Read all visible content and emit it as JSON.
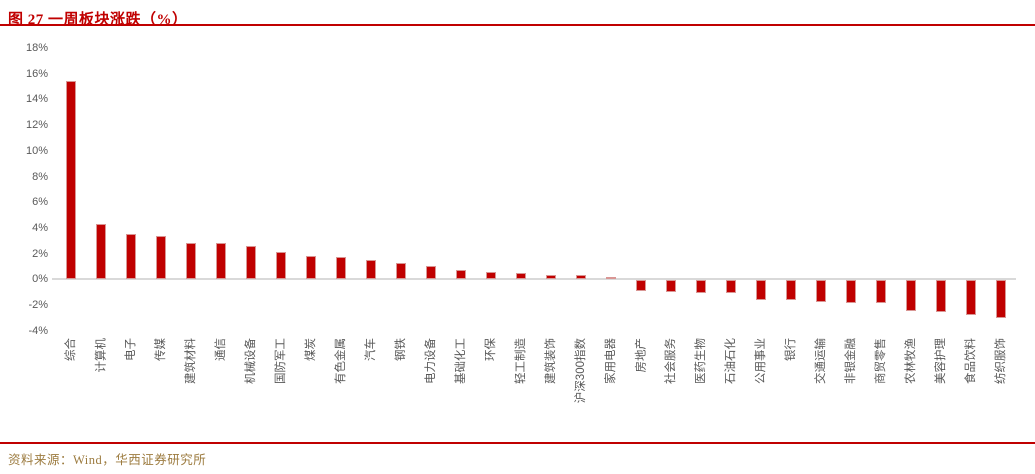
{
  "header": {
    "title": "图 27 一周板块涨跌（%）"
  },
  "footer": {
    "source": "资料来源：Wind，华西证券研究所"
  },
  "colors": {
    "accent_red": "#C00000",
    "bar_fill": "#C00000",
    "bar_border": "#D99694",
    "axis_text": "#595959",
    "zero_line": "#D9D9D9",
    "source_text": "#9C7B3F"
  },
  "chart_data": {
    "type": "bar",
    "title": "一周板块涨跌（%）",
    "categories": [
      "综合",
      "计算机",
      "电子",
      "传媒",
      "建筑材料",
      "通信",
      "机械设备",
      "国防军工",
      "煤炭",
      "有色金属",
      "汽车",
      "钢铁",
      "电力设备",
      "基础化工",
      "环保",
      "轻工制造",
      "建筑装饰",
      "沪深300指数",
      "家用电器",
      "房地产",
      "社会服务",
      "医药生物",
      "石油石化",
      "公用事业",
      "银行",
      "交通运输",
      "非银金融",
      "商贸零售",
      "农林牧渔",
      "美容护理",
      "食品饮料",
      "纺织服饰"
    ],
    "values": [
      15.4,
      4.3,
      3.5,
      3.4,
      2.8,
      2.8,
      2.6,
      2.1,
      1.8,
      1.7,
      1.5,
      1.3,
      1.0,
      0.7,
      0.6,
      0.5,
      0.3,
      0.3,
      0.2,
      -0.8,
      -0.9,
      -1.0,
      -1.0,
      -1.5,
      -1.5,
      -1.7,
      -1.8,
      -1.8,
      -2.4,
      -2.5,
      -2.7,
      -2.9
    ],
    "yticks": [
      "18%",
      "16%",
      "14%",
      "12%",
      "10%",
      "8%",
      "6%",
      "4%",
      "2%",
      "0%",
      "-2%",
      "-4%"
    ],
    "ylim": [
      -4,
      18
    ],
    "ytick_step": 2,
    "grid": false,
    "legend": false,
    "bar_color": "#C00000"
  }
}
